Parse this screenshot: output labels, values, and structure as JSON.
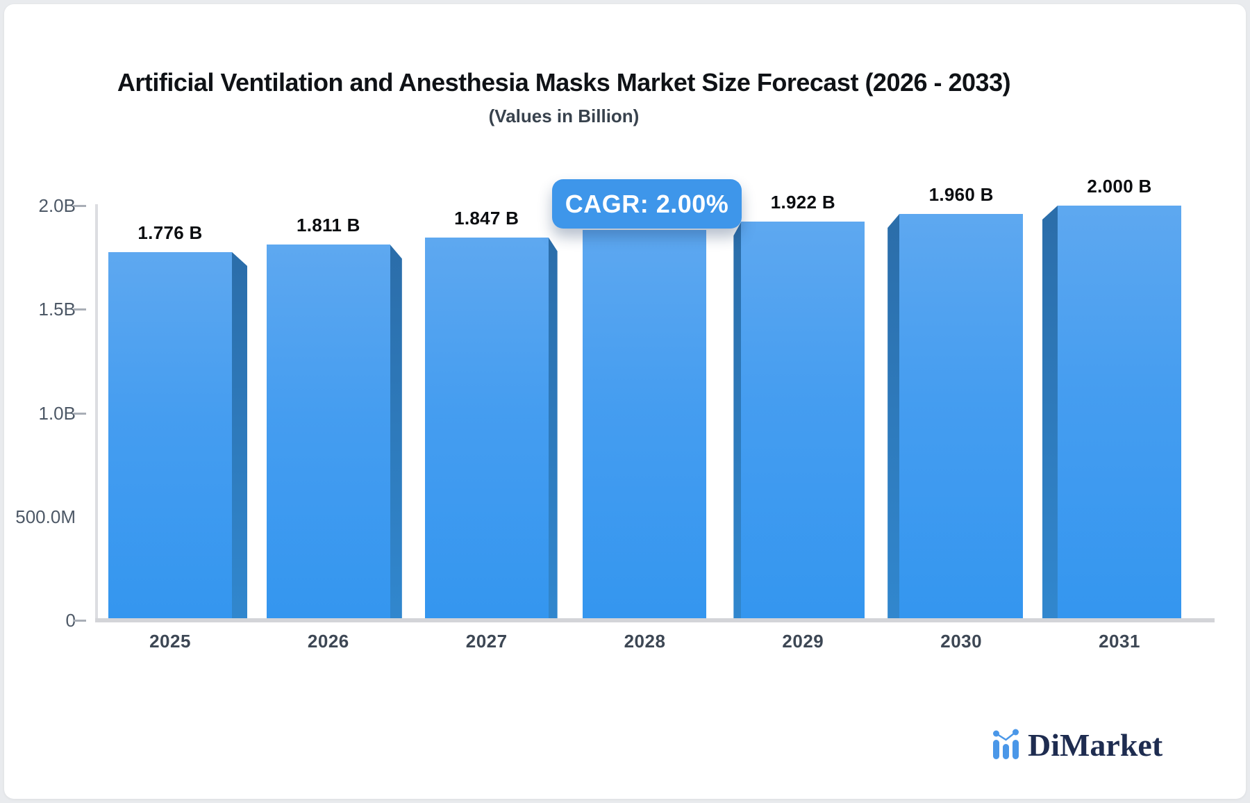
{
  "header": {
    "title": "Artificial Ventilation and Anesthesia Masks Market Size Forecast (2026 - 2033)",
    "subtitle": "(Values in Billion)"
  },
  "cagr_badge": {
    "label": "CAGR: 2.00%",
    "background_color": "#3e96ea",
    "text_color": "#ffffff"
  },
  "y_axis": {
    "tick_labels": [
      "2.0B",
      "1.5B",
      "1.0B",
      "500.0M",
      "0"
    ],
    "tick_values_billion": [
      2.0,
      1.5,
      1.0,
      0.5,
      0
    ]
  },
  "chart_data": {
    "type": "bar",
    "title": "Artificial Ventilation and Anesthesia Masks Market Size Forecast (2026 - 2033)",
    "subtitle": "(Values in Billion)",
    "categories": [
      "2025",
      "2026",
      "2027",
      "2028",
      "2029",
      "2030",
      "2031"
    ],
    "values_billion": [
      1.776,
      1.811,
      1.847,
      1.884,
      1.922,
      1.96,
      2.0
    ],
    "bar_labels": [
      "1.776 B",
      "1.811 B",
      "1.847 B",
      null,
      "1.922 B",
      "1.960 B",
      "2.000 B"
    ],
    "annotation": "CAGR: 2.00%",
    "xlabel": "",
    "ylabel": "",
    "ylim": [
      0,
      2.0
    ],
    "grid": false,
    "legend": "none",
    "bar_color_top": "#5ea8f0",
    "bar_color_bottom": "#3496ef",
    "bar_side_color": "#2d79bd"
  },
  "logo": {
    "text": "DiMarket",
    "icon": "mini-bar-chart-icon",
    "text_color": "#1e2c50",
    "icon_color": "#4a97e8"
  }
}
